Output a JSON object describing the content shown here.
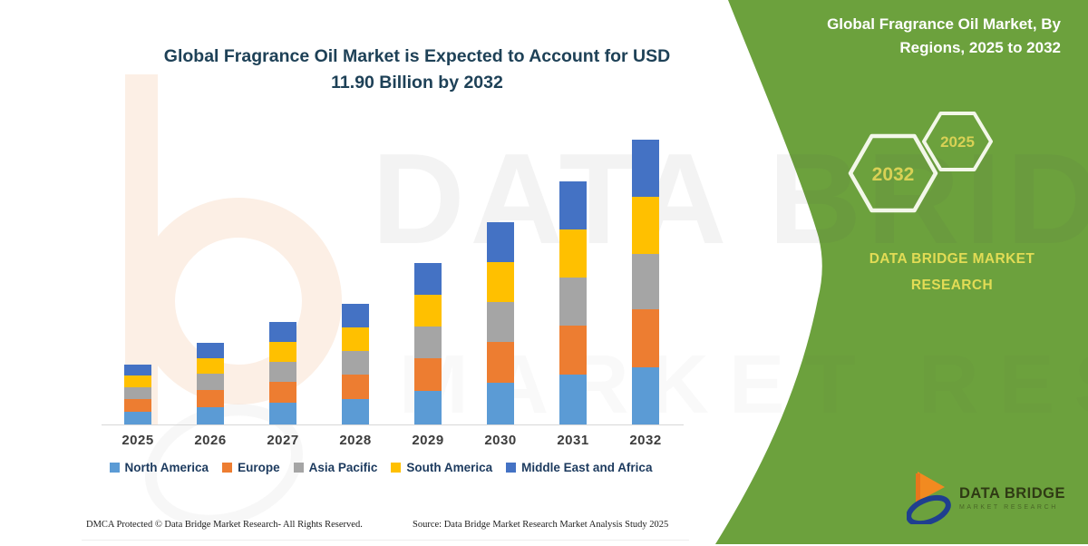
{
  "main": {
    "title_line1": "Global Fragrance Oil Market is Expected to Account for USD",
    "title_line2": "11.90 Billion by 2032"
  },
  "side_panel": {
    "title": "Global Fragrance Oil Market, By Regions, 2025 to 2032",
    "hexagon_large_label": "2032",
    "hexagon_small_label": "2025",
    "brand_line1": "DATA BRIDGE MARKET",
    "brand_line2": "RESEARCH",
    "logo_name": "DATA BRIDGE",
    "logo_subtext": "MARKET RESEARCH",
    "background_color": "#6ca13d",
    "accent_text_color": "#ddd75a"
  },
  "watermarks": {
    "row1": "DATA BRIDGE",
    "row2": "MARKET RESEARCH"
  },
  "footer": {
    "left": "DMCA Protected © Data Bridge Market Research-  All Rights Reserved.",
    "right": "Source: Data Bridge Market Research  Market Analysis Study 2025"
  },
  "chart_data": {
    "type": "bar",
    "stacked": true,
    "title": "Global Fragrance Oil Market is Expected to Account for USD 11.90 Billion by 2032",
    "unit": "USD Billion",
    "categories": [
      "2025",
      "2026",
      "2027",
      "2028",
      "2029",
      "2030",
      "2031",
      "2032"
    ],
    "series": [
      {
        "name": "North America",
        "color": "#5B9BD5",
        "values": [
          0.53,
          0.72,
          0.9,
          1.06,
          1.42,
          1.74,
          2.08,
          2.4
        ]
      },
      {
        "name": "Europe",
        "color": "#ED7D31",
        "values": [
          0.53,
          0.72,
          0.88,
          1.04,
          1.38,
          1.72,
          2.06,
          2.44
        ]
      },
      {
        "name": "Asia Pacific",
        "color": "#A5A5A5",
        "values": [
          0.49,
          0.68,
          0.85,
          1.0,
          1.34,
          1.68,
          2.02,
          2.3
        ]
      },
      {
        "name": "South America",
        "color": "#FFC000",
        "values": [
          0.49,
          0.66,
          0.84,
          1.0,
          1.34,
          1.68,
          2.02,
          2.38
        ]
      },
      {
        "name": "Middle East and Africa",
        "color": "#4472C4",
        "values": [
          0.46,
          0.64,
          0.83,
          0.98,
          1.32,
          1.66,
          2.0,
          2.38
        ]
      }
    ],
    "totals": [
      2.5,
      3.42,
      4.3,
      5.08,
      6.8,
      8.48,
      10.18,
      11.9
    ],
    "ylim": [
      0,
      13.2
    ],
    "grid": false,
    "legend_position": "bottom"
  }
}
